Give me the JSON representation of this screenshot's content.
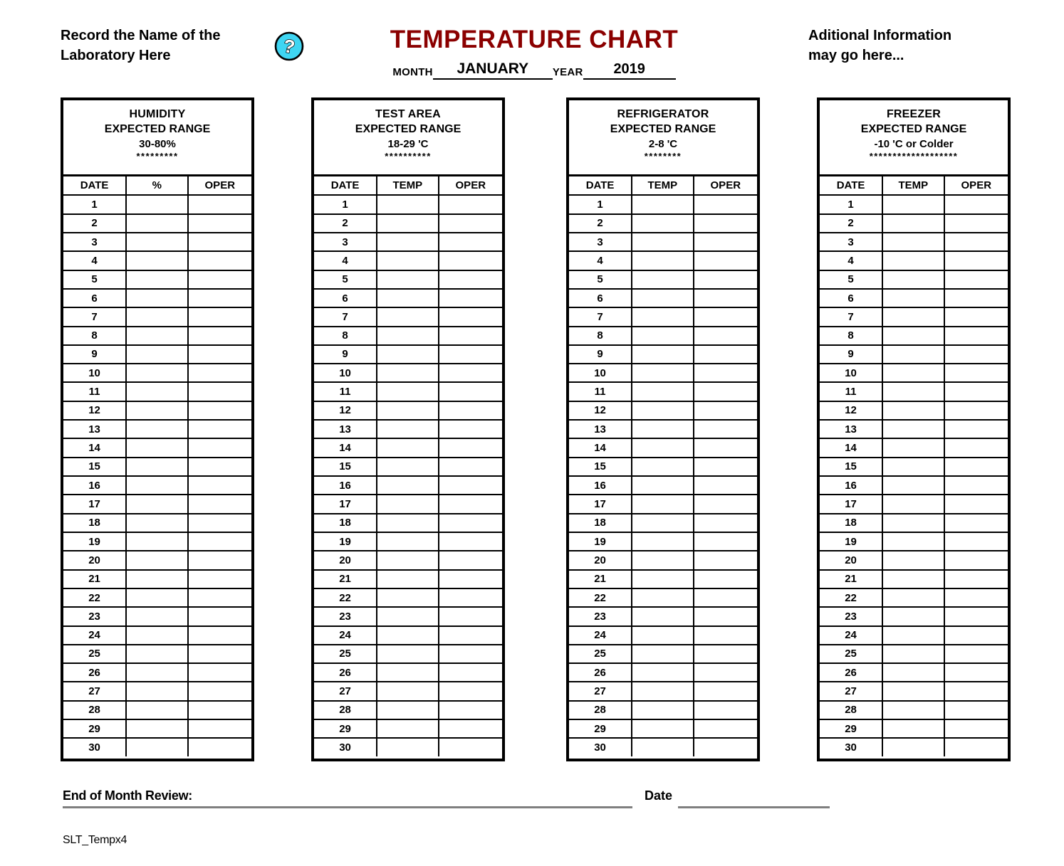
{
  "header": {
    "lab_note_line1": "Record the Name of the",
    "lab_note_line2": "Laboratory Here",
    "title": "TEMPERATURE CHART",
    "month_label": "MONTH",
    "month_value": "JANUARY",
    "year_label": "YEAR",
    "year_value": "2019",
    "additional_line1": "Aditional Information",
    "additional_line2": "may go here...",
    "help_icon": "question-mark-icon"
  },
  "colors": {
    "title_red": "#8B0000",
    "help_icon_fill": "#3FD5F2",
    "footer_line_gray": "#7f7f7f",
    "border_black": "#000000"
  },
  "dates": [
    1,
    2,
    3,
    4,
    5,
    6,
    7,
    8,
    9,
    10,
    11,
    12,
    13,
    14,
    15,
    16,
    17,
    18,
    19,
    20,
    21,
    22,
    23,
    24,
    25,
    26,
    27,
    28,
    29,
    30
  ],
  "tables": [
    {
      "id": "humidity",
      "title": "HUMIDITY",
      "subtitle": "EXPECTED RANGE",
      "range": "30-80%",
      "stars": "*********",
      "columns": [
        "DATE",
        "%",
        "OPER"
      ]
    },
    {
      "id": "test-area",
      "title": "TEST AREA",
      "subtitle": "EXPECTED RANGE",
      "range": "18-29 'C",
      "stars": "**********",
      "columns": [
        "DATE",
        "TEMP",
        "OPER"
      ]
    },
    {
      "id": "refrigerator",
      "title": "REFRIGERATOR",
      "subtitle": "EXPECTED RANGE",
      "range": "2-8 'C",
      "stars": "********",
      "columns": [
        "DATE",
        "TEMP",
        "OPER"
      ]
    },
    {
      "id": "freezer",
      "title": "FREEZER",
      "subtitle": "EXPECTED RANGE",
      "range": "-10 'C or Colder",
      "stars": "*******************",
      "columns": [
        "DATE",
        "TEMP",
        "OPER"
      ]
    }
  ],
  "footer": {
    "review_label": "End of Month Review:",
    "date_label": "Date",
    "doc_code": "SLT_Tempx4"
  }
}
